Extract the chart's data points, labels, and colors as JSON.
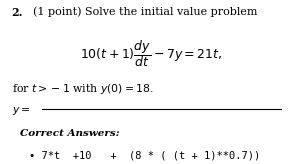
{
  "title_bold": "2.",
  "title_normal": " (1 point) Solve the initial value problem",
  "equation": "$10(t+1)\\dfrac{dy}{dt} - 7y = 21t,$",
  "condition": "for $t > -1$ with $y(0) = 18.$",
  "y_label": "$y = $",
  "correct_label": "Correct Answers:",
  "bullet_answer": "7*t  +10   +  (8 * ( (t + 1)**0.7))",
  "bg_color": "#ffffff",
  "text_color": "#000000",
  "font_size_title": 8.0,
  "font_size_eq": 9.0,
  "font_size_cond": 7.8,
  "font_size_correct": 7.5
}
